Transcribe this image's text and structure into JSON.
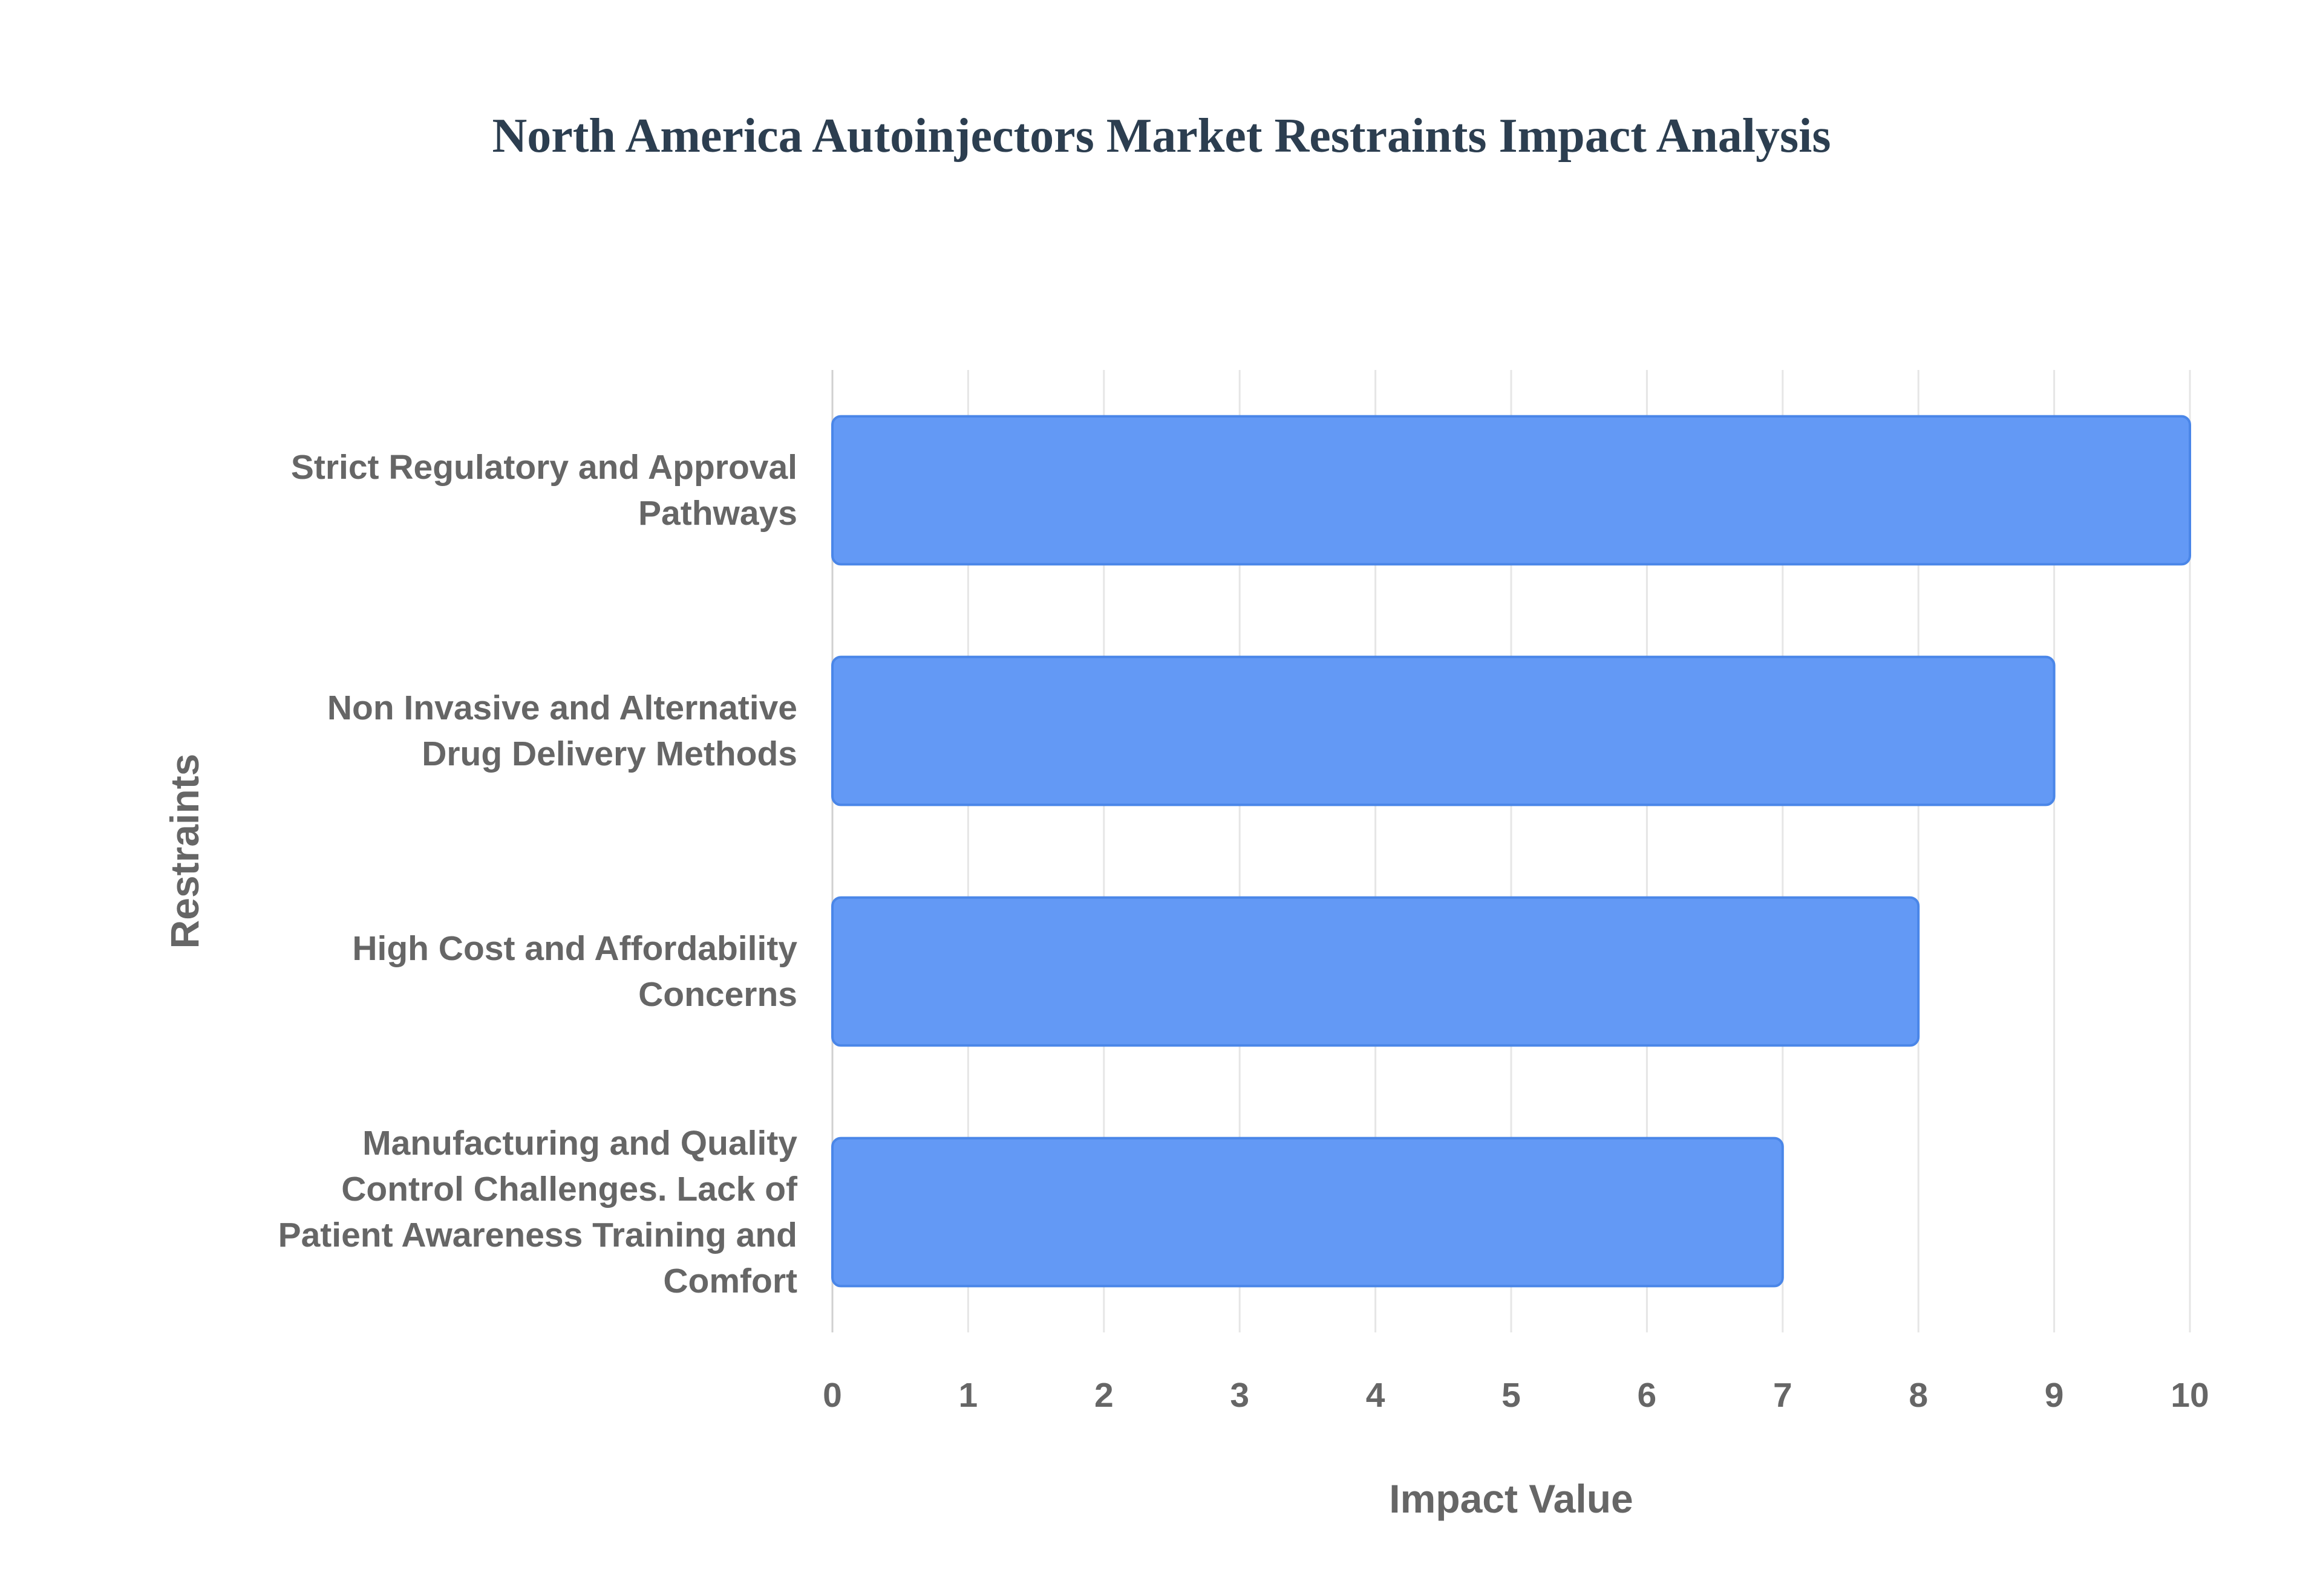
{
  "chart_data": {
    "type": "bar",
    "orientation": "horizontal",
    "title": "North America Autoinjectors Market Restraints Impact Analysis",
    "x_label": "Impact Value",
    "y_label": "Restraints",
    "categories": [
      "Strict Regulatory and Approval Pathways",
      "Non Invasive and Alternative Drug Delivery Methods",
      "High Cost and Affordability Concerns",
      "Manufacturing and Quality Control Challenges. Lack of Patient Awareness Training and Comfort"
    ],
    "values": [
      10,
      9,
      8,
      7
    ],
    "color": "#6399f5",
    "xlim": [
      0,
      10
    ],
    "xticks": [
      0,
      1,
      2,
      3,
      4,
      5,
      6,
      7,
      8,
      9,
      10
    ],
    "grid": true
  }
}
